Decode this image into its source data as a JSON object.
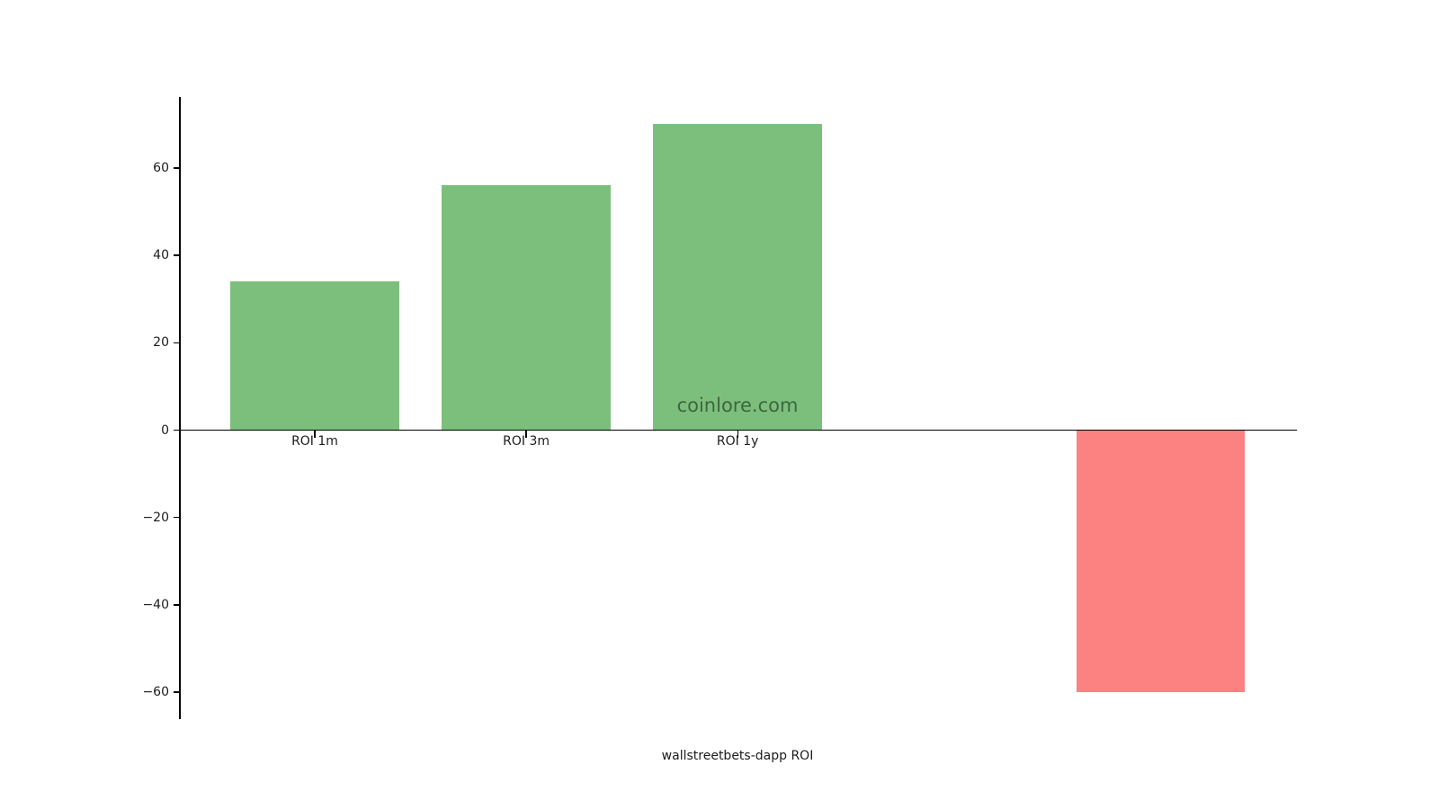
{
  "page": {
    "background": "#ffffff"
  },
  "chart_data": {
    "type": "bar",
    "title": "wallstreetbets-dapp ROI",
    "watermark": "coinlore.com",
    "categories": [
      "ROI 1m",
      "ROI 3m",
      "ROI 1y",
      ""
    ],
    "x_slots": [
      0,
      1,
      2,
      4
    ],
    "values": [
      34,
      56,
      70,
      -60
    ],
    "bar_colors": [
      "#7cbf7c",
      "#7cbf7c",
      "#7cbf7c",
      "#fc8181"
    ],
    "positive_color": "#7cbf7c",
    "negative_color": "#fc8181",
    "xlabel": "",
    "ylabel": "",
    "yticks": [
      60,
      40,
      20,
      0,
      -20,
      -40,
      -60
    ],
    "ylim": [
      -66,
      76
    ],
    "grid": false,
    "legend": false,
    "axis_color": "#000000",
    "text_color": "#1c1c1c",
    "watermark_color": "rgba(25,45,25,0.62)"
  }
}
